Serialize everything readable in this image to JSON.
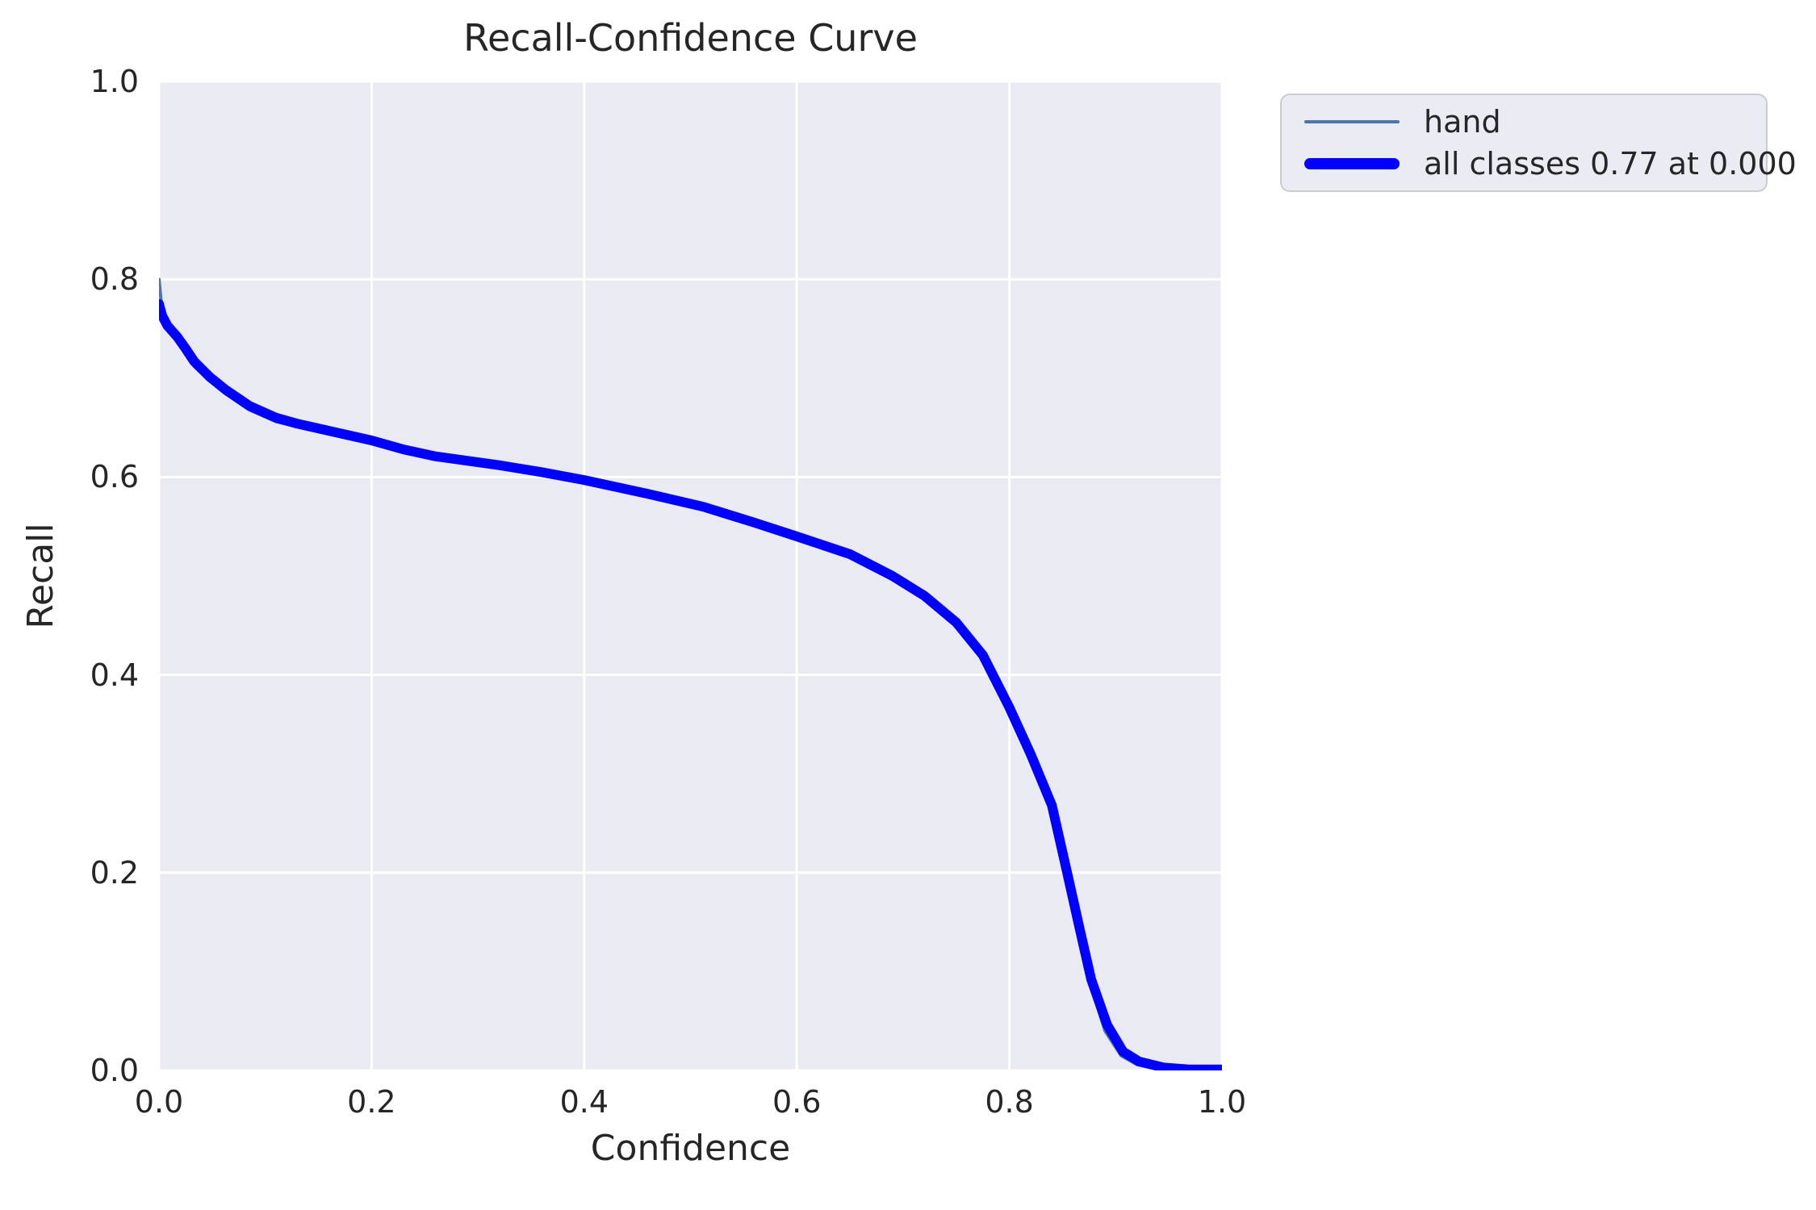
{
  "figure": {
    "title": "Recall-Confidence Curve",
    "xlabel": "Confidence",
    "ylabel": "Recall"
  },
  "legend": {
    "position": "outside-upper-right",
    "entries": [
      {
        "label": "hand",
        "color": "#4C72B0",
        "thickness": "thin"
      },
      {
        "label": "all classes 0.77 at 0.000",
        "color": "#0000FF",
        "thickness": "thick"
      }
    ]
  },
  "colors": {
    "figure_background": "#FFFFFF",
    "axes_background": "#EAEAF2",
    "gridline": "#FFFFFF",
    "text": "#262626",
    "hand_line": "#4C72B0",
    "all_classes_line": "#0000FF"
  },
  "chart_data": {
    "type": "line",
    "title": "Recall-Confidence Curve",
    "xlabel": "Confidence",
    "ylabel": "Recall",
    "xlim": [
      0,
      1
    ],
    "ylim": [
      0,
      1
    ],
    "xticks": [
      0.0,
      0.2,
      0.4,
      0.6,
      0.8,
      1.0
    ],
    "yticks": [
      0.0,
      0.2,
      0.4,
      0.6,
      0.8,
      1.0
    ],
    "grid": true,
    "legend_position": "outside upper right",
    "annotation": "all classes recall 0.77 at confidence 0.000",
    "series": [
      {
        "name": "hand",
        "color": "#4C72B0",
        "linewidth": 4,
        "points": [
          [
            0.0,
            0.8
          ],
          [
            0.002,
            0.778
          ],
          [
            0.005,
            0.76
          ],
          [
            0.01,
            0.748
          ],
          [
            0.017,
            0.737
          ],
          [
            0.025,
            0.725
          ],
          [
            0.033,
            0.712
          ],
          [
            0.048,
            0.697
          ],
          [
            0.063,
            0.684
          ],
          [
            0.085,
            0.668
          ],
          [
            0.11,
            0.656
          ],
          [
            0.13,
            0.651
          ],
          [
            0.155,
            0.645
          ],
          [
            0.2,
            0.635
          ],
          [
            0.26,
            0.62
          ],
          [
            0.32,
            0.611
          ],
          [
            0.4,
            0.596
          ],
          [
            0.46,
            0.582
          ],
          [
            0.512,
            0.569
          ],
          [
            0.56,
            0.553
          ],
          [
            0.6,
            0.539
          ],
          [
            0.65,
            0.521
          ],
          [
            0.69,
            0.499
          ],
          [
            0.72,
            0.479
          ],
          [
            0.75,
            0.452
          ],
          [
            0.775,
            0.418
          ],
          [
            0.8,
            0.364
          ],
          [
            0.82,
            0.316
          ],
          [
            0.84,
            0.262
          ],
          [
            0.855,
            0.19
          ],
          [
            0.866,
            0.136
          ],
          [
            0.877,
            0.084
          ],
          [
            0.89,
            0.04
          ],
          [
            0.905,
            0.015
          ],
          [
            0.92,
            0.006
          ],
          [
            0.945,
            0.002
          ],
          [
            1.0,
            0.001
          ]
        ]
      },
      {
        "name": "all classes 0.77 at 0.000",
        "color": "#0000FF",
        "linewidth": 12,
        "points": [
          [
            0.0,
            0.775
          ],
          [
            0.003,
            0.763
          ],
          [
            0.008,
            0.753
          ],
          [
            0.017,
            0.742
          ],
          [
            0.025,
            0.73
          ],
          [
            0.033,
            0.717
          ],
          [
            0.048,
            0.701
          ],
          [
            0.063,
            0.688
          ],
          [
            0.085,
            0.672
          ],
          [
            0.11,
            0.66
          ],
          [
            0.13,
            0.654
          ],
          [
            0.155,
            0.648
          ],
          [
            0.2,
            0.637
          ],
          [
            0.23,
            0.628
          ],
          [
            0.26,
            0.621
          ],
          [
            0.32,
            0.612
          ],
          [
            0.36,
            0.605
          ],
          [
            0.4,
            0.597
          ],
          [
            0.46,
            0.583
          ],
          [
            0.512,
            0.57
          ],
          [
            0.56,
            0.554
          ],
          [
            0.6,
            0.54
          ],
          [
            0.65,
            0.522
          ],
          [
            0.69,
            0.5
          ],
          [
            0.72,
            0.48
          ],
          [
            0.75,
            0.453
          ],
          [
            0.775,
            0.42
          ],
          [
            0.8,
            0.367
          ],
          [
            0.82,
            0.32
          ],
          [
            0.84,
            0.268
          ],
          [
            0.855,
            0.197
          ],
          [
            0.866,
            0.144
          ],
          [
            0.877,
            0.092
          ],
          [
            0.892,
            0.046
          ],
          [
            0.907,
            0.019
          ],
          [
            0.922,
            0.009
          ],
          [
            0.945,
            0.003
          ],
          [
            0.97,
            0.001
          ],
          [
            1.0,
            0.001
          ]
        ]
      }
    ]
  }
}
